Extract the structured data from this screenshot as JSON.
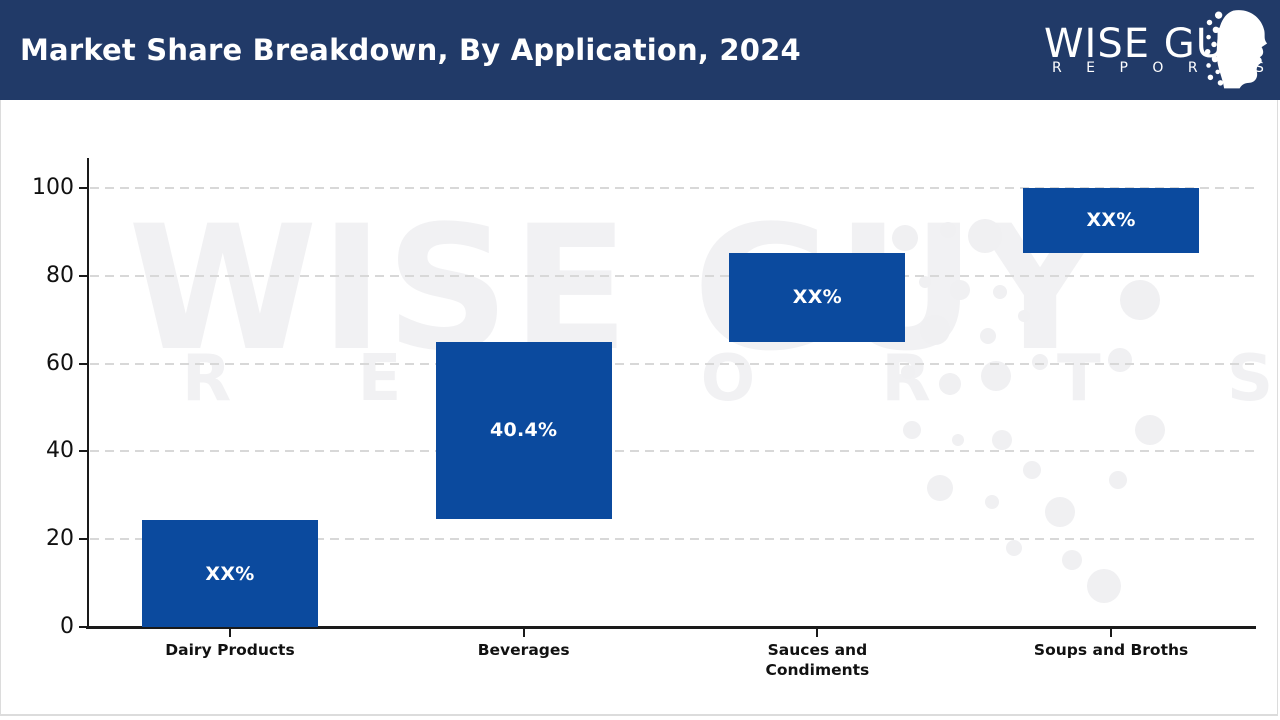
{
  "header": {
    "title": "Market Share Breakdown, By Application, 2024",
    "logo": {
      "line1": "WISE GUY",
      "line2": "R E P O R T S"
    }
  },
  "watermark": {
    "line1": "WISE GUY",
    "line2": "R E P O R T S"
  },
  "colors": {
    "header_bg": "#213A68",
    "bar": "#0B4A9E",
    "grid": "#D8D8D8",
    "axis": "#1A1A1A",
    "watermark": "#F1F1F3",
    "title_text": "#FFFFFF",
    "bar_label_text": "#FFFFFF",
    "card_border": "#DCDCDC"
  },
  "chart_data": {
    "type": "bar",
    "subtype": "floating_waterfall_segments",
    "title": "Market Share Breakdown, By Application, 2024",
    "categories": [
      "Dairy Products",
      "Beverages",
      "Sauces and Condiments",
      "Soups and Broths"
    ],
    "series": [
      {
        "name": "Market Share (%)",
        "segments": [
          {
            "category": "Dairy Products",
            "from": 0,
            "to": 24.3,
            "label": "XX%"
          },
          {
            "category": "Beverages",
            "from": 24.6,
            "to": 65.0,
            "label": "40.4%"
          },
          {
            "category": "Sauces and Condiments",
            "from": 65.0,
            "to": 85.2,
            "label": "XX%"
          },
          {
            "category": "Soups and Broths",
            "from": 85.2,
            "to": 100,
            "label": "XX%"
          }
        ]
      }
    ],
    "xlabel": "",
    "ylabel": "",
    "ylim": [
      0,
      106
    ],
    "yticks": [
      0,
      20,
      40,
      60,
      80,
      100
    ],
    "grid": "horizontal_dashed",
    "legend": "none"
  }
}
